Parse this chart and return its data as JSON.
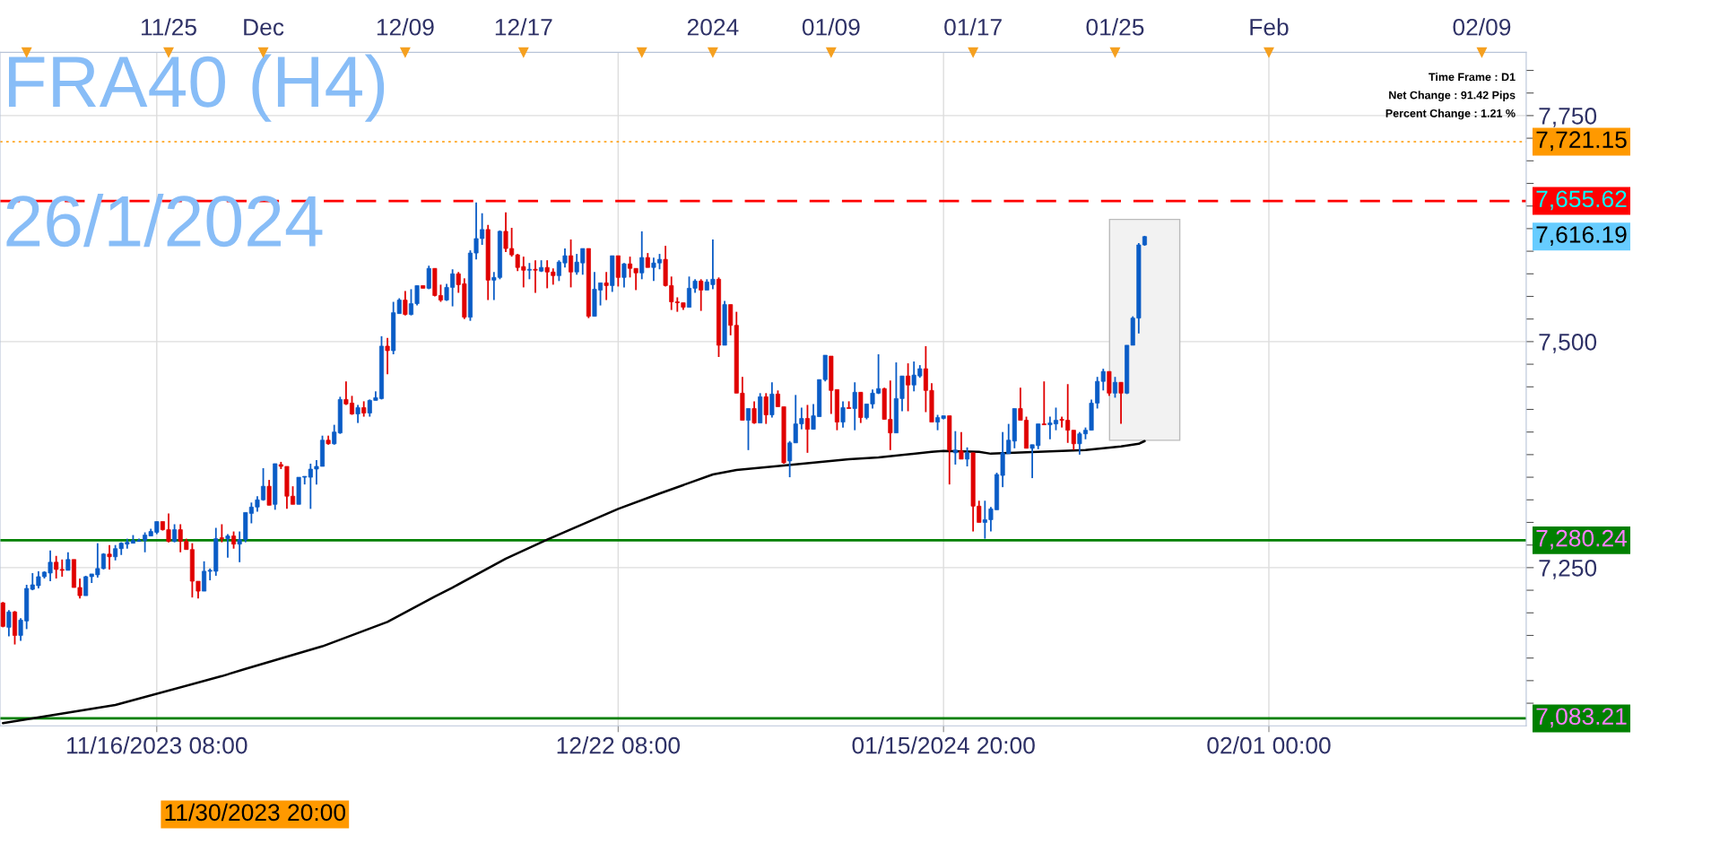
{
  "chart_data": {
    "type": "candlestick",
    "title": "FRA40 (H4)",
    "subtitle": "26/1/2024",
    "categories": [
      null,
      null,
      null,
      null,
      null,
      null,
      null,
      null,
      null,
      null,
      null,
      null,
      null,
      null,
      null,
      null,
      null,
      null,
      null,
      null,
      null,
      null,
      null,
      null,
      null,
      null,
      "11/16/2023 08:00",
      null,
      null,
      null,
      null,
      null,
      null,
      null,
      null,
      null,
      null,
      null,
      null,
      null,
      null,
      null,
      null,
      null,
      null,
      null,
      null,
      null,
      null,
      null,
      null,
      null,
      null,
      null,
      null,
      null,
      null,
      null,
      null,
      null,
      null,
      null,
      null,
      null,
      null,
      null,
      null,
      null,
      null,
      null,
      null,
      null,
      null,
      null,
      null,
      null,
      null,
      null,
      null,
      null,
      null,
      null,
      null,
      null,
      null,
      null,
      null,
      null,
      null,
      null,
      null,
      null,
      null,
      null,
      null,
      null,
      null,
      null,
      null,
      null,
      null,
      null,
      null,
      null,
      "12/22 08:00",
      null,
      null,
      null,
      null,
      null,
      null,
      null,
      null,
      null,
      null,
      null,
      null,
      null,
      null,
      null,
      null,
      null,
      null,
      null,
      null,
      null,
      null,
      null,
      null,
      null,
      null,
      null,
      null,
      null,
      null,
      null,
      null,
      null,
      null,
      null,
      null,
      null,
      null,
      null,
      null,
      null,
      null,
      null,
      null,
      null,
      null,
      null,
      null,
      null,
      null,
      null,
      null,
      null,
      null,
      "01/15/2024 20:00",
      null,
      null,
      null,
      null,
      null,
      null,
      null,
      null,
      null,
      null,
      null,
      null,
      null,
      null,
      null,
      null,
      null,
      null,
      null,
      null,
      null,
      null,
      null,
      null,
      null,
      null,
      null,
      null,
      null,
      null,
      null,
      null,
      null,
      null,
      null,
      null,
      null,
      null,
      null,
      null,
      null,
      null,
      null,
      null,
      null,
      null,
      null,
      null,
      null,
      null,
      null,
      null,
      null,
      null,
      "02/01 00:00",
      null,
      null,
      null,
      null,
      null,
      null,
      null,
      null,
      null,
      null,
      null,
      null,
      null,
      null,
      null,
      null,
      null,
      null,
      null,
      null,
      null,
      null,
      null,
      null,
      null,
      null,
      null,
      null,
      null,
      null,
      null,
      null,
      null,
      null,
      null,
      null,
      null,
      null,
      null,
      null,
      null,
      null,
      null
    ],
    "ohlc": [
      [
        7211,
        7212,
        7184,
        7185
      ],
      [
        7184,
        7203,
        7174,
        7201
      ],
      [
        7201,
        7202,
        7165,
        7175
      ],
      [
        7175,
        7194,
        7169,
        7192
      ],
      [
        7191,
        7231,
        7182,
        7227
      ],
      [
        7226,
        7244,
        7225,
        7231
      ],
      [
        7230,
        7246,
        7227,
        7240
      ],
      [
        7240,
        7246,
        7238,
        7245
      ],
      [
        7244,
        7269,
        7235,
        7256
      ],
      [
        7256,
        7263,
        7238,
        7248
      ],
      [
        7248,
        7259,
        7240,
        7247
      ],
      [
        7247,
        7267,
        7247,
        7259
      ],
      [
        7259,
        7259,
        7228,
        7228
      ],
      [
        7228,
        7238,
        7216,
        7219
      ],
      [
        7219,
        7241,
        7219,
        7240
      ],
      [
        7240,
        7243,
        7233,
        7243
      ],
      [
        7242,
        7277,
        7239,
        7249
      ],
      [
        7249,
        7266,
        7248,
        7265
      ],
      [
        7265,
        7275,
        7248,
        7262
      ],
      [
        7262,
        7275,
        7258,
        7271
      ],
      [
        7271,
        7278,
        7264,
        7277
      ],
      [
        7276,
        7282,
        7271,
        7278
      ],
      [
        7277,
        7286,
        7277,
        7280
      ],
      [
        7279,
        7282,
        7279,
        7280
      ],
      [
        7280,
        7289,
        7267,
        7286
      ],
      [
        7285,
        7293,
        7285,
        7290
      ],
      [
        7289,
        7301,
        7287,
        7301
      ],
      [
        7301,
        7301,
        7291,
        7292
      ],
      [
        7292,
        7310,
        7278,
        7279
      ],
      [
        7279,
        7298,
        7278,
        7292
      ],
      [
        7292,
        7298,
        7267,
        7279
      ],
      [
        7279,
        7282,
        7270,
        7270
      ],
      [
        7270,
        7277,
        7217,
        7235
      ],
      [
        7235,
        7235,
        7216,
        7224
      ],
      [
        7224,
        7257,
        7224,
        7246
      ],
      [
        7246,
        7249,
        7236,
        7247
      ],
      [
        7246,
        7294,
        7241,
        7282
      ],
      [
        7283,
        7298,
        7278,
        7282
      ],
      [
        7282,
        7287,
        7261,
        7285
      ],
      [
        7285,
        7290,
        7271,
        7276
      ],
      [
        7276,
        7290,
        7256,
        7281
      ],
      [
        7281,
        7311,
        7278,
        7311
      ],
      [
        7310,
        7322,
        7299,
        7317
      ],
      [
        7317,
        7329,
        7312,
        7325
      ],
      [
        7325,
        7360,
        7324,
        7340
      ],
      [
        7340,
        7347,
        7319,
        7319
      ],
      [
        7320,
        7365,
        7314,
        7365
      ],
      [
        7364,
        7367,
        7359,
        7362
      ],
      [
        7362,
        7362,
        7315,
        7329
      ],
      [
        7329,
        7340,
        7320,
        7320
      ],
      [
        7320,
        7350,
        7320,
        7350
      ],
      [
        7350,
        7351,
        7342,
        7351
      ],
      [
        7350,
        7365,
        7315,
        7359
      ],
      [
        7359,
        7369,
        7342,
        7362
      ],
      [
        7362,
        7396,
        7362,
        7391
      ],
      [
        7391,
        7396,
        7386,
        7387
      ],
      [
        7387,
        7408,
        7386,
        7400
      ],
      [
        7399,
        7439,
        7398,
        7436
      ],
      [
        7436,
        7456,
        7430,
        7431
      ],
      [
        7432,
        7440,
        7419,
        7420
      ],
      [
        7420,
        7430,
        7410,
        7427
      ],
      [
        7427,
        7434,
        7417,
        7421
      ],
      [
        7421,
        7436,
        7417,
        7435
      ],
      [
        7435,
        7445,
        7435,
        7438
      ],
      [
        7437,
        7506,
        7436,
        7495
      ],
      [
        7495,
        7504,
        7464,
        7490
      ],
      [
        7490,
        7544,
        7486,
        7532
      ],
      [
        7531,
        7548,
        7531,
        7546
      ],
      [
        7546,
        7556,
        7529,
        7530
      ],
      [
        7530,
        7558,
        7529,
        7542
      ],
      [
        7542,
        7562,
        7540,
        7562
      ],
      [
        7562,
        7562,
        7559,
        7559
      ],
      [
        7559,
        7584,
        7558,
        7581
      ],
      [
        7581,
        7581,
        7550,
        7551
      ],
      [
        7551,
        7563,
        7544,
        7546
      ],
      [
        7546,
        7564,
        7545,
        7560
      ],
      [
        7560,
        7580,
        7539,
        7575
      ],
      [
        7575,
        7577,
        7554,
        7563
      ],
      [
        7564,
        7570,
        7525,
        7527
      ],
      [
        7527,
        7601,
        7523,
        7598
      ],
      [
        7598,
        7654,
        7591,
        7614
      ],
      [
        7614,
        7642,
        7607,
        7624
      ],
      [
        7624,
        7629,
        7546,
        7568
      ],
      [
        7568,
        7577,
        7546,
        7571
      ],
      [
        7571,
        7623,
        7569,
        7622
      ],
      [
        7622,
        7643,
        7599,
        7603
      ],
      [
        7603,
        7626,
        7594,
        7596
      ],
      [
        7596,
        7597,
        7578,
        7582
      ],
      [
        7583,
        7594,
        7560,
        7579
      ],
      [
        7579,
        7587,
        7569,
        7580
      ],
      [
        7580,
        7590,
        7554,
        7579
      ],
      [
        7578,
        7590,
        7577,
        7582
      ],
      [
        7582,
        7590,
        7559,
        7577
      ],
      [
        7577,
        7581,
        7563,
        7573
      ],
      [
        7573,
        7590,
        7567,
        7588
      ],
      [
        7587,
        7603,
        7582,
        7595
      ],
      [
        7595,
        7613,
        7560,
        7577
      ],
      [
        7577,
        7597,
        7574,
        7588
      ],
      [
        7587,
        7603,
        7574,
        7603
      ],
      [
        7603,
        7603,
        7526,
        7528
      ],
      [
        7528,
        7577,
        7528,
        7558
      ],
      [
        7557,
        7565,
        7540,
        7565
      ],
      [
        7565,
        7577,
        7546,
        7562
      ],
      [
        7562,
        7595,
        7555,
        7595
      ],
      [
        7595,
        7595,
        7561,
        7571
      ],
      [
        7571,
        7587,
        7560,
        7586
      ],
      [
        7586,
        7594,
        7571,
        7581
      ],
      [
        7581,
        7581,
        7557,
        7576
      ],
      [
        7576,
        7622,
        7569,
        7593
      ],
      [
        7593,
        7598,
        7582,
        7582
      ],
      [
        7582,
        7593,
        7567,
        7587
      ],
      [
        7587,
        7597,
        7580,
        7591
      ],
      [
        7591,
        7606,
        7561,
        7562
      ],
      [
        7562,
        7572,
        7535,
        7544
      ],
      [
        7544,
        7549,
        7533,
        7543
      ],
      [
        7543,
        7543,
        7535,
        7538
      ],
      [
        7538,
        7572,
        7538,
        7559
      ],
      [
        7559,
        7569,
        7554,
        7567
      ],
      [
        7567,
        7569,
        7534,
        7557
      ],
      [
        7557,
        7569,
        7557,
        7566
      ],
      [
        7563,
        7613,
        7558,
        7569
      ],
      [
        7569,
        7571,
        7483,
        7496
      ],
      [
        7496,
        7545,
        7496,
        7541
      ],
      [
        7541,
        7541,
        7507,
        7518
      ],
      [
        7518,
        7533,
        7443,
        7443
      ],
      [
        7443,
        7461,
        7413,
        7413
      ],
      [
        7413,
        7426,
        7380,
        7426
      ],
      [
        7426,
        7434,
        7409,
        7410
      ],
      [
        7410,
        7443,
        7410,
        7439
      ],
      [
        7439,
        7443,
        7409,
        7419
      ],
      [
        7419,
        7455,
        7416,
        7442
      ],
      [
        7442,
        7446,
        7428,
        7428
      ],
      [
        7428,
        7428,
        7365,
        7366
      ],
      [
        7368,
        7390,
        7350,
        7388
      ],
      [
        7388,
        7441,
        7388,
        7409
      ],
      [
        7409,
        7427,
        7403,
        7415
      ],
      [
        7415,
        7430,
        7377,
        7403
      ],
      [
        7403,
        7431,
        7403,
        7418
      ],
      [
        7417,
        7458,
        7417,
        7458
      ],
      [
        7458,
        7485,
        7456,
        7485
      ],
      [
        7484,
        7484,
        7420,
        7446
      ],
      [
        7447,
        7447,
        7402,
        7411
      ],
      [
        7411,
        7434,
        7405,
        7427
      ],
      [
        7427,
        7434,
        7426,
        7426
      ],
      [
        7426,
        7455,
        7402,
        7444
      ],
      [
        7444,
        7444,
        7410,
        7416
      ],
      [
        7416,
        7431,
        7414,
        7431
      ],
      [
        7431,
        7447,
        7426,
        7443
      ],
      [
        7443,
        7486,
        7442,
        7448
      ],
      [
        7448,
        7449,
        7414,
        7414
      ],
      [
        7414,
        7457,
        7380,
        7399
      ],
      [
        7399,
        7477,
        7399,
        7437
      ],
      [
        7437,
        7462,
        7423,
        7462
      ],
      [
        7462,
        7476,
        7423,
        7452
      ],
      [
        7452,
        7478,
        7445,
        7463
      ],
      [
        7462,
        7474,
        7460,
        7470
      ],
      [
        7470,
        7495,
        7422,
        7446
      ],
      [
        7446,
        7454,
        7411,
        7411
      ],
      [
        7411,
        7419,
        7402,
        7416
      ],
      [
        7415,
        7418,
        7414,
        7418
      ],
      [
        7418,
        7418,
        7342,
        7380
      ],
      [
        7377,
        7401,
        7364,
        7380
      ],
      [
        7379,
        7400,
        7370,
        7370
      ],
      [
        7370,
        7383,
        7362,
        7377
      ],
      [
        7377,
        7377,
        7290,
        7318
      ],
      [
        7318,
        7324,
        7300,
        7300
      ],
      [
        7300,
        7324,
        7282,
        7303
      ],
      [
        7303,
        7317,
        7290,
        7315
      ],
      [
        7314,
        7355,
        7314,
        7353
      ],
      [
        7352,
        7400,
        7339,
        7377
      ],
      [
        7376,
        7409,
        7376,
        7391
      ],
      [
        7390,
        7426,
        7382,
        7426
      ],
      [
        7426,
        7449,
        7413,
        7413
      ],
      [
        7413,
        7417,
        7382,
        7382
      ],
      [
        7382,
        7386,
        7349,
        7386
      ],
      [
        7385,
        7409,
        7381,
        7409
      ],
      [
        7409,
        7456,
        7408,
        7408
      ],
      [
        7408,
        7417,
        7392,
        7410
      ],
      [
        7409,
        7427,
        7402,
        7413
      ],
      [
        7414,
        7417,
        7405,
        7413
      ],
      [
        7413,
        7453,
        7388,
        7402
      ],
      [
        7402,
        7402,
        7380,
        7387
      ],
      [
        7387,
        7400,
        7375,
        7398
      ],
      [
        7398,
        7405,
        7392,
        7402
      ],
      [
        7402,
        7436,
        7402,
        7432
      ],
      [
        7432,
        7461,
        7426,
        7456
      ],
      [
        7456,
        7470,
        7446,
        7467
      ],
      [
        7467,
        7467,
        7440,
        7443
      ],
      [
        7443,
        7461,
        7438,
        7455
      ],
      [
        7455,
        7455,
        7409,
        7443
      ],
      [
        7443,
        7496,
        7442,
        7496
      ],
      [
        7496,
        7528,
        7496,
        7526
      ],
      [
        7526,
        7609,
        7509,
        7607
      ],
      [
        7607,
        7617,
        7606,
        7616.19
      ],
      null,
      null,
      null,
      null,
      null,
      null,
      null,
      null,
      null,
      null,
      null,
      null,
      null,
      null,
      null,
      null,
      null,
      null,
      null,
      null,
      null,
      null,
      null,
      null,
      null,
      null,
      null,
      null,
      null,
      null,
      null,
      null,
      null,
      null,
      null,
      null,
      null,
      null,
      null,
      null,
      null,
      null,
      null,
      null,
      null,
      null,
      null,
      null,
      null,
      null,
      null,
      null,
      null,
      null,
      null,
      null,
      null,
      null,
      null,
      null,
      null,
      null,
      null,
      null
    ],
    "series": [
      {
        "type": "line",
        "color": "#000000",
        "values": [
          7078,
          null,
          null,
          null,
          null,
          null,
          null,
          null,
          null,
          null,
          null,
          null,
          null,
          null,
          null,
          null,
          null,
          null,
          null,
          7098,
          null,
          null,
          null,
          null,
          null,
          null,
          null,
          null,
          null,
          null,
          null,
          null,
          null,
          null,
          null,
          null,
          null,
          7130,
          null,
          null,
          null,
          7138,
          null,
          null,
          null,
          null,
          null,
          null,
          null,
          null,
          null,
          null,
          null,
          null,
          7163,
          null,
          null,
          null,
          null,
          null,
          null,
          null,
          null,
          null,
          null,
          7190,
          null,
          null,
          null,
          null,
          null,
          null,
          null,
          7218,
          null,
          null,
          7228,
          null,
          null,
          null,
          null,
          null,
          null,
          null,
          null,
          7260,
          null,
          null,
          null,
          null,
          null,
          null,
          7281,
          null,
          null,
          null,
          null,
          null,
          null,
          null,
          null,
          null,
          null,
          null,
          7315,
          null,
          null,
          null,
          null,
          null,
          null,
          7332,
          null,
          null,
          null,
          null,
          null,
          null,
          null,
          null,
          7353,
          null,
          null,
          null,
          7358,
          null,
          null,
          null,
          null,
          null,
          null,
          null,
          7363,
          null,
          null,
          null,
          null,
          null,
          null,
          null,
          null,
          null,
          null,
          7370,
          null,
          null,
          null,
          null,
          7372,
          null,
          null,
          null,
          null,
          null,
          null,
          null,
          null,
          7378,
          null,
          7379,
          null,
          null,
          null,
          null,
          null,
          7378,
          null,
          7376,
          null,
          null,
          null,
          7377,
          null,
          null,
          null,
          null,
          null,
          null,
          null,
          null,
          null,
          null,
          null,
          7380,
          null,
          null,
          null,
          null,
          null,
          7384,
          null,
          null,
          7387,
          7390,
          null,
          null,
          null,
          null,
          null,
          null,
          null,
          null,
          null,
          null,
          null,
          null,
          null,
          null,
          null,
          null,
          null,
          null,
          null,
          null,
          null,
          null,
          null,
          null,
          null,
          null,
          null,
          null,
          null,
          null,
          null,
          null,
          null,
          null,
          null,
          null,
          null,
          null,
          null,
          null,
          null,
          null,
          null,
          null,
          null,
          null,
          null,
          null,
          null,
          null,
          null,
          null,
          null,
          null,
          null,
          null,
          null,
          null,
          null,
          null,
          null,
          null,
          null,
          null
        ]
      }
    ],
    "ylim": [
      7075,
      7820
    ],
    "yticks": [
      {
        "value": 7100,
        "label": null
      },
      {
        "value": 7125,
        "label": null
      },
      {
        "value": 7150,
        "label": null
      },
      {
        "value": 7175,
        "label": null
      },
      {
        "value": 7200,
        "label": null
      },
      {
        "value": 7225,
        "label": null
      },
      {
        "value": 7250,
        "label": "7,250"
      },
      {
        "value": 7275,
        "label": null
      },
      {
        "value": 7300,
        "label": null
      },
      {
        "value": 7325,
        "label": null
      },
      {
        "value": 7350,
        "label": null
      },
      {
        "value": 7375,
        "label": null
      },
      {
        "value": 7400,
        "label": null
      },
      {
        "value": 7425,
        "label": null
      },
      {
        "value": 7450,
        "label": null
      },
      {
        "value": 7475,
        "label": null
      },
      {
        "value": 7500,
        "label": "7,500"
      },
      {
        "value": 7525,
        "label": null
      },
      {
        "value": 7550,
        "label": null
      },
      {
        "value": 7575,
        "label": null
      },
      {
        "value": 7600,
        "label": null
      },
      {
        "value": 7625,
        "label": null
      },
      {
        "value": 7650,
        "label": null
      },
      {
        "value": 7675,
        "label": null
      },
      {
        "value": 7700,
        "label": null
      },
      {
        "value": 7725,
        "label": null
      },
      {
        "value": 7750,
        "label": "7,750"
      },
      {
        "value": 7775,
        "label": null
      },
      {
        "value": 7800,
        "label": null
      }
    ],
    "ref_lines": [
      {
        "axis": "y",
        "value": 7721.15,
        "label": "7,721.15",
        "color": "#ff9900",
        "line_style": "dotted"
      },
      {
        "axis": "y",
        "value": 7655.62,
        "label": "7,655.62",
        "color": "#ff0000",
        "line_style": "dashed"
      },
      {
        "axis": "y",
        "value": 7280.24,
        "label": "7,280.24",
        "color": "#008000",
        "line_style": "solid"
      },
      {
        "axis": "y",
        "value": 7083.21,
        "label": "7,083.21",
        "color": "#008000",
        "line_style": "solid"
      }
    ],
    "annotations": [
      "11/25",
      "Dec",
      "12/09",
      "12/17",
      "2024",
      "01/09",
      "01/17",
      "01/25",
      "Feb",
      "02/09",
      "Time Frame : D1",
      "Net Change : 91.42 Pips",
      "Percent Change : 1.21 %",
      "11/30/2023 20:00",
      "7,616.19"
    ],
    "grid": true
  }
}
